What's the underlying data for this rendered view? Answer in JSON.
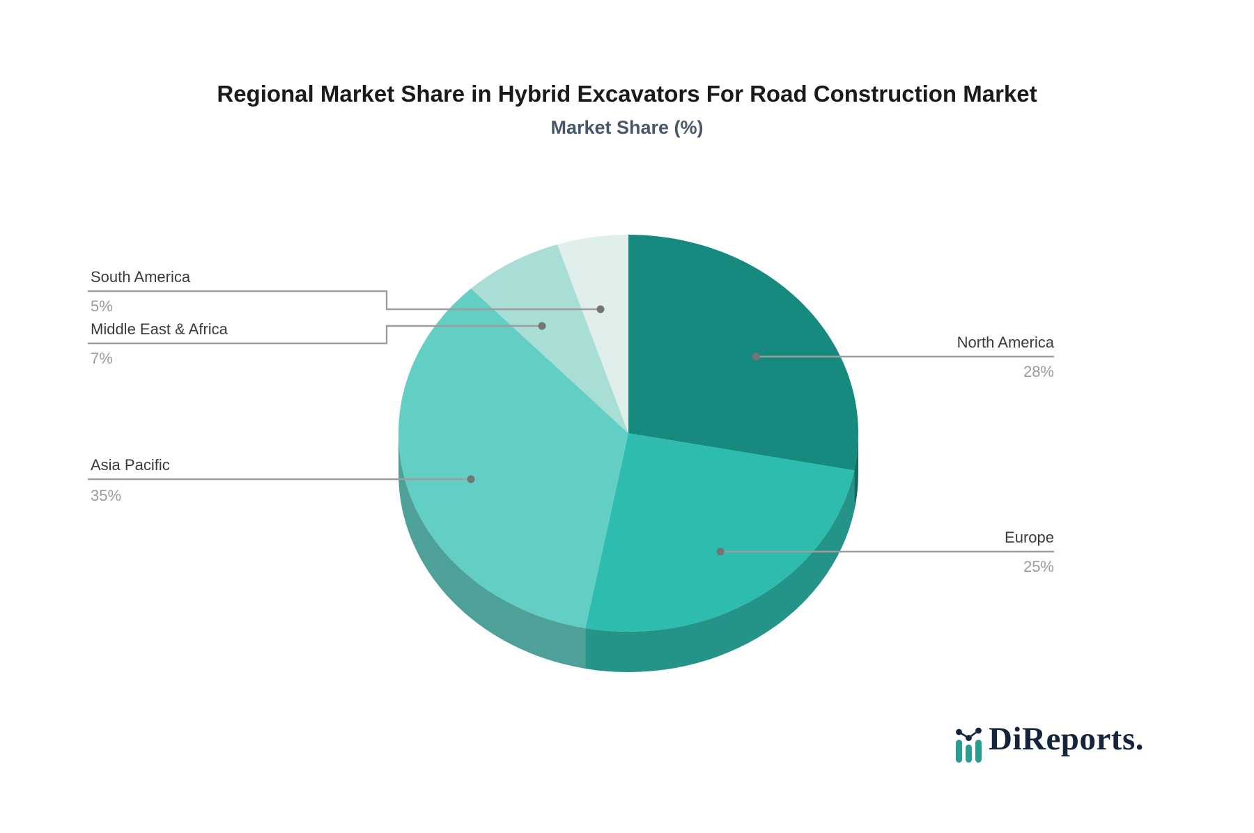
{
  "header": {
    "title": "Regional Market Share in Hybrid Excavators For Road Construction Market",
    "subtitle": "Market Share (%)"
  },
  "chart_data": {
    "type": "pie",
    "style": "3d",
    "title": "Regional Market Share in Hybrid Excavators For Road Construction Market",
    "subtitle": "Market Share (%)",
    "unit": "%",
    "rotation": "starts at 12 o'clock, clockwise",
    "label_format": "region name above leader line, percent value below",
    "categories": [
      "North America",
      "Europe",
      "Asia Pacific",
      "Middle East & Africa",
      "South America"
    ],
    "values": [
      28,
      25,
      35,
      7,
      5
    ],
    "value_labels": [
      "28%",
      "25%",
      "35%",
      "7%",
      "5%"
    ],
    "colors": [
      "#168a7e",
      "#2ebcae",
      "#63cfc4",
      "#a8ded6",
      "#e0efec"
    ],
    "side_shade_factor": 0.78,
    "legend_position": "callout labels around pie"
  },
  "branding": {
    "logo_text": "DiReports",
    "logo_period": ".",
    "logo_icon": "bar-line-chart-icon",
    "logo_text_color": "#15233c",
    "logo_bar_color": "#2b9c90"
  },
  "styles": {
    "leader_line_color": "#9d9d9d",
    "leader_dot_color": "#747474",
    "label_color": "#3a3a3a",
    "percent_color": "#9b9b9b",
    "title_color": "#1a1a1a",
    "subtitle_color": "#47586b",
    "background": "#ffffff"
  }
}
